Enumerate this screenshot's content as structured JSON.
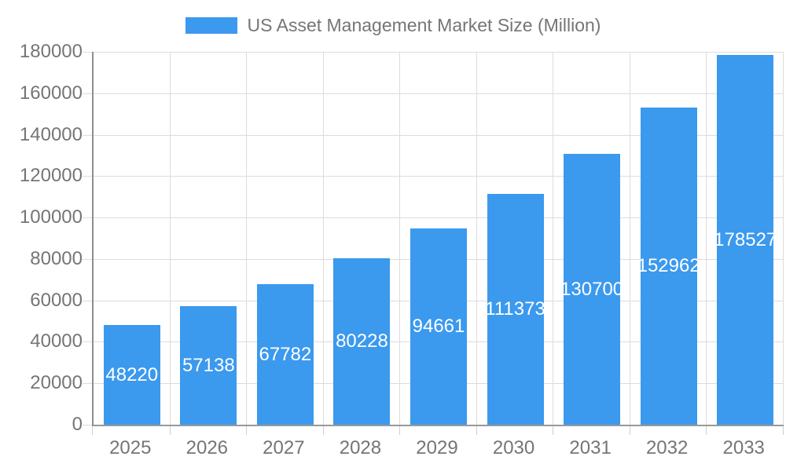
{
  "legend": {
    "label": "US Asset Management Market Size (Million)"
  },
  "colors": {
    "bar": "#3B99EE",
    "bar_label_text": "#FFFFFF",
    "axis_label_text": "#757575",
    "grid_line": "#DCDCDC",
    "y_axis_line": "#8E8E8E",
    "x_axis_line": "#999999",
    "background": "#FFFFFF"
  },
  "chart_data": {
    "type": "bar",
    "title": "US Asset Management Market Size (Million)",
    "categories": [
      "2025",
      "2026",
      "2027",
      "2028",
      "2029",
      "2030",
      "2031",
      "2032",
      "2033"
    ],
    "values": [
      48220,
      57138,
      67782,
      80228,
      94661,
      111373,
      130700,
      152962,
      178527
    ],
    "xlabel": "",
    "ylabel": "",
    "ylim": [
      0,
      180000
    ],
    "y_ticks": [
      0,
      20000,
      40000,
      60000,
      80000,
      100000,
      120000,
      140000,
      160000,
      180000
    ],
    "grid": true,
    "legend_position": "top",
    "bar_value_labels": "inside-center-white"
  }
}
